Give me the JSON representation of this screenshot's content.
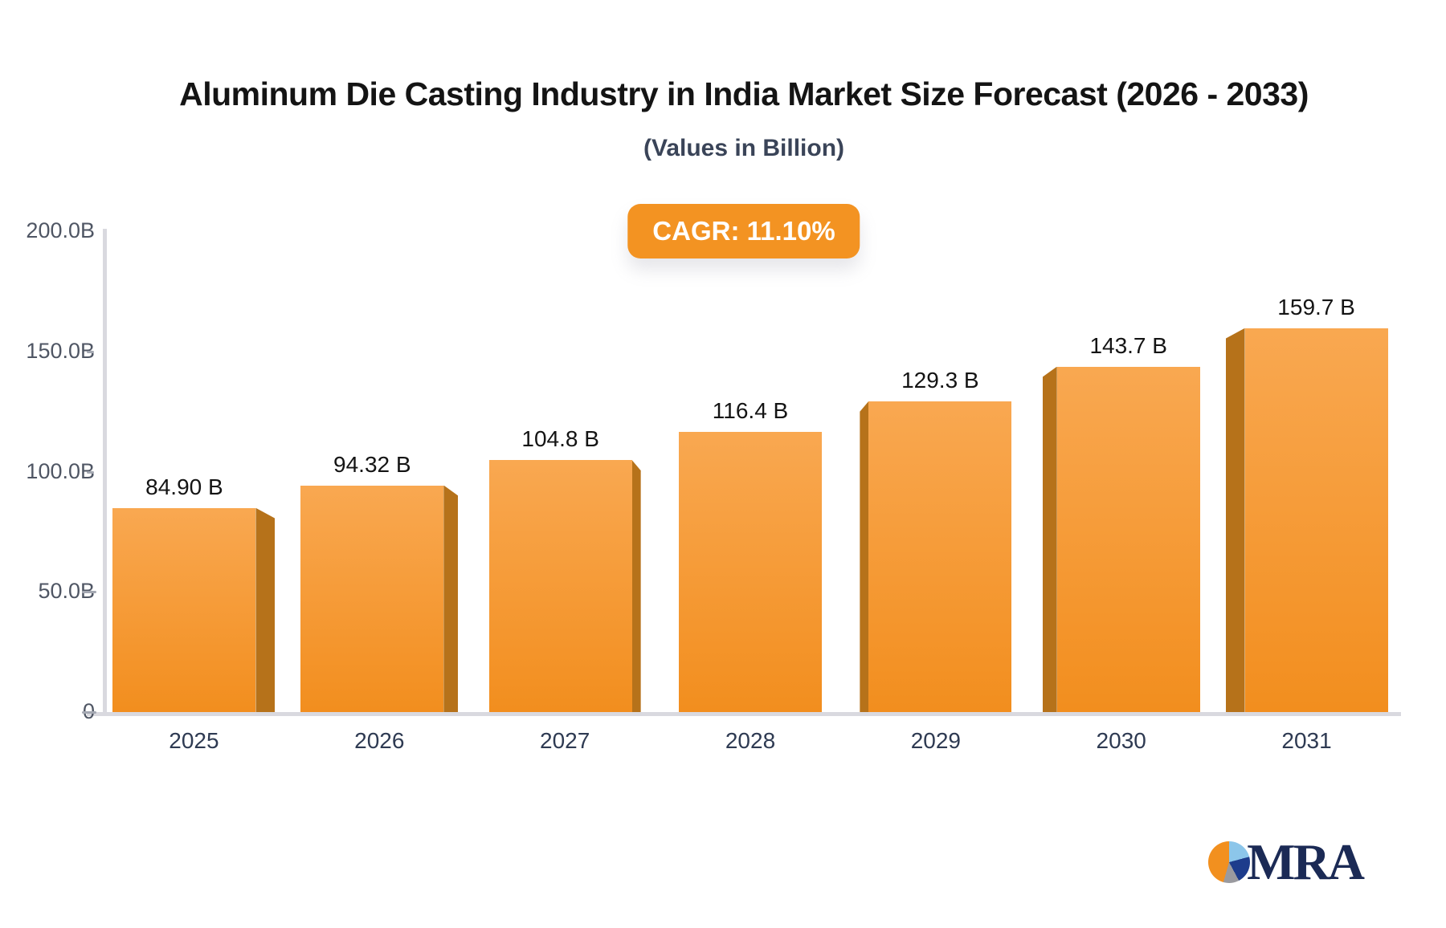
{
  "chart_data": {
    "type": "bar",
    "title": "Aluminum Die Casting Industry in India Market Size Forecast (2026 - 2033)",
    "subtitle": "(Values in Billion)",
    "badge": "CAGR: 11.10%",
    "categories": [
      "2025",
      "2026",
      "2027",
      "2028",
      "2029",
      "2030",
      "2031"
    ],
    "values": [
      84.9,
      94.32,
      104.8,
      116.4,
      129.3,
      143.7,
      159.7
    ],
    "value_labels": [
      "84.90 B",
      "94.32 B",
      "104.8 B",
      "116.4 B",
      "129.3 B",
      "143.7 B",
      "159.7 B"
    ],
    "xlabel": "",
    "ylabel": "",
    "ylim": [
      0,
      200
    ],
    "yticks": [
      {
        "label": "200.0B",
        "value": 200
      },
      {
        "label": "150.0B",
        "value": 150
      },
      {
        "label": "100.0B",
        "value": 100
      },
      {
        "label": "50.0B",
        "value": 50
      },
      {
        "label": "0",
        "value": 0
      }
    ],
    "grid": "off",
    "legend": "none",
    "colors": {
      "bar_top": "#F9A851",
      "bar_bottom": "#F28E1E",
      "bar_side": "#B6721A",
      "axis": "#D9D9DF",
      "tick_text": "#4F5664",
      "year_text": "#2E3A52",
      "value_text": "#141414",
      "badge_bg": "#F39322",
      "badge_text": "#FFFFFF",
      "title_text": "#141414",
      "subtitle_text": "#3A4458"
    }
  },
  "logo": {
    "text": "MRA",
    "colors": {
      "navy": "#1B2A55",
      "pie_orange": "#F2901F",
      "pie_lightblue": "#8CC6EA",
      "pie_darkblue": "#1D3C8C",
      "pie_gray": "#9A9A9F"
    }
  }
}
